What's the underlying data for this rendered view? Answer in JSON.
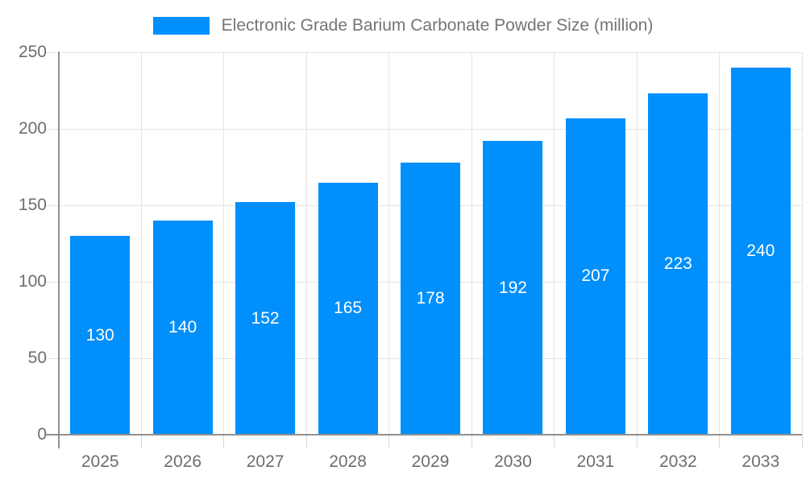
{
  "chart_data": {
    "type": "bar",
    "title": "Electronic Grade Barium Carbonate Powder Size (million)",
    "categories": [
      "2025",
      "2026",
      "2027",
      "2028",
      "2029",
      "2030",
      "2031",
      "2032",
      "2033"
    ],
    "values": [
      130,
      140,
      152,
      165,
      178,
      192,
      207,
      223,
      240
    ],
    "series": [
      {
        "name": "Electronic Grade Barium Carbonate Powder Size (million)",
        "values": [
          130,
          140,
          152,
          165,
          178,
          192,
          207,
          223,
          240
        ]
      }
    ],
    "xlabel": "",
    "ylabel": "",
    "ylim": [
      0,
      250
    ],
    "yticks": [
      0,
      50,
      100,
      150,
      200,
      250
    ],
    "grid": true,
    "legend_position": "top",
    "data_labels": "inside-center",
    "colors": {
      "bar": "#008FFB",
      "data_label": "#FFFFFF",
      "axis_label": "#6E6E6E",
      "title": "#757575",
      "axis_line": "#919191",
      "gridline": "#E4E4E4",
      "tick": "#D8D8D8",
      "background": "#FFFFFF"
    }
  }
}
